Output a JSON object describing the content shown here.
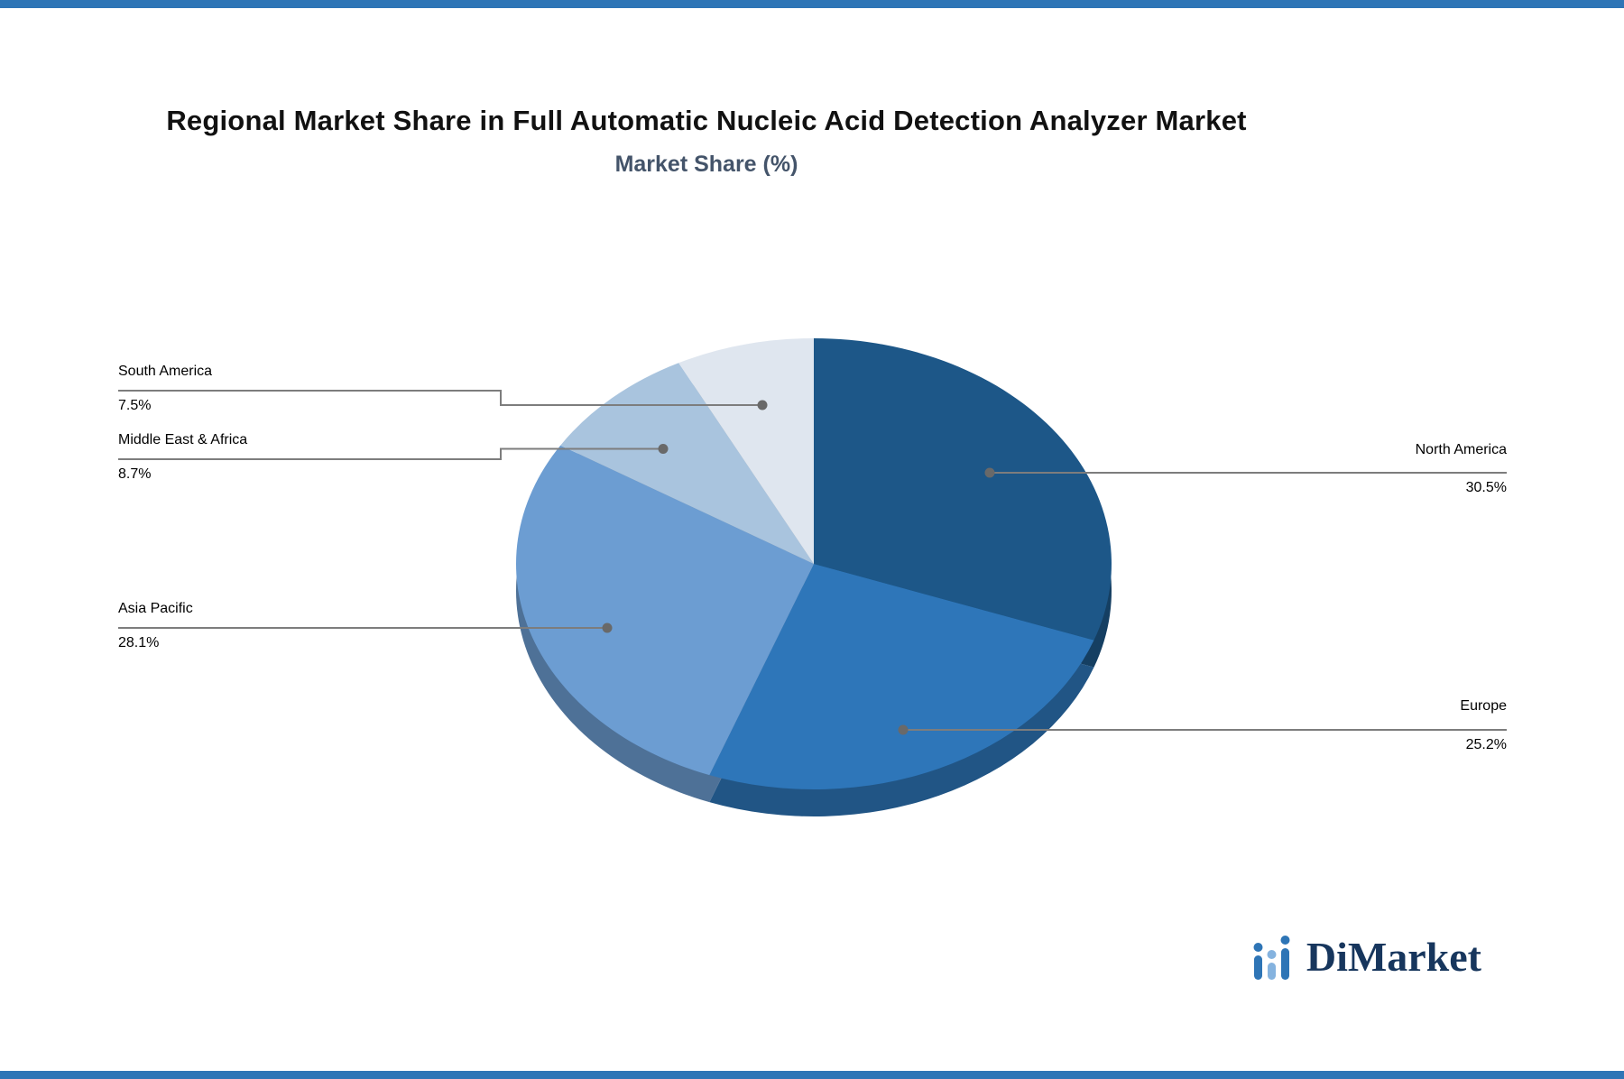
{
  "frame": {
    "border_color": "#2E75B6"
  },
  "header": {
    "title": "Regional Market Share in Full Automatic Nucleic Acid Detection Analyzer Market",
    "subtitle": "Market Share (%)"
  },
  "chart_data": {
    "type": "pie",
    "title": "Regional Market Share in Full Automatic Nucleic Acid Detection Analyzer Market",
    "subtitle": "Market Share (%)",
    "unit": "%",
    "style": "3d-pie",
    "direction": "clockwise",
    "start_angle_deg": 0,
    "legend": "none, callout labels with leader lines",
    "slices": [
      {
        "label": "North America",
        "value": 30.5,
        "value_label": "30.5%",
        "color": "#1D5788"
      },
      {
        "label": "Europe",
        "value": 25.2,
        "value_label": "25.2%",
        "color": "#2E76B9"
      },
      {
        "label": "Asia Pacific",
        "value": 28.1,
        "value_label": "28.1%",
        "color": "#6C9DD2"
      },
      {
        "label": "Middle East & Africa",
        "value": 8.7,
        "value_label": "8.7%",
        "color": "#A9C4DE"
      },
      {
        "label": "South America",
        "value": 7.5,
        "value_label": "7.5%",
        "color": "#DFE6EF"
      }
    ],
    "leader_line_color": "#7d7d7d",
    "label_color": "#2e2e2e",
    "value_color": "#9b9b9b"
  },
  "branding": {
    "logo_text": "DiMarket",
    "logo_icon": "bar-chart-icon"
  }
}
